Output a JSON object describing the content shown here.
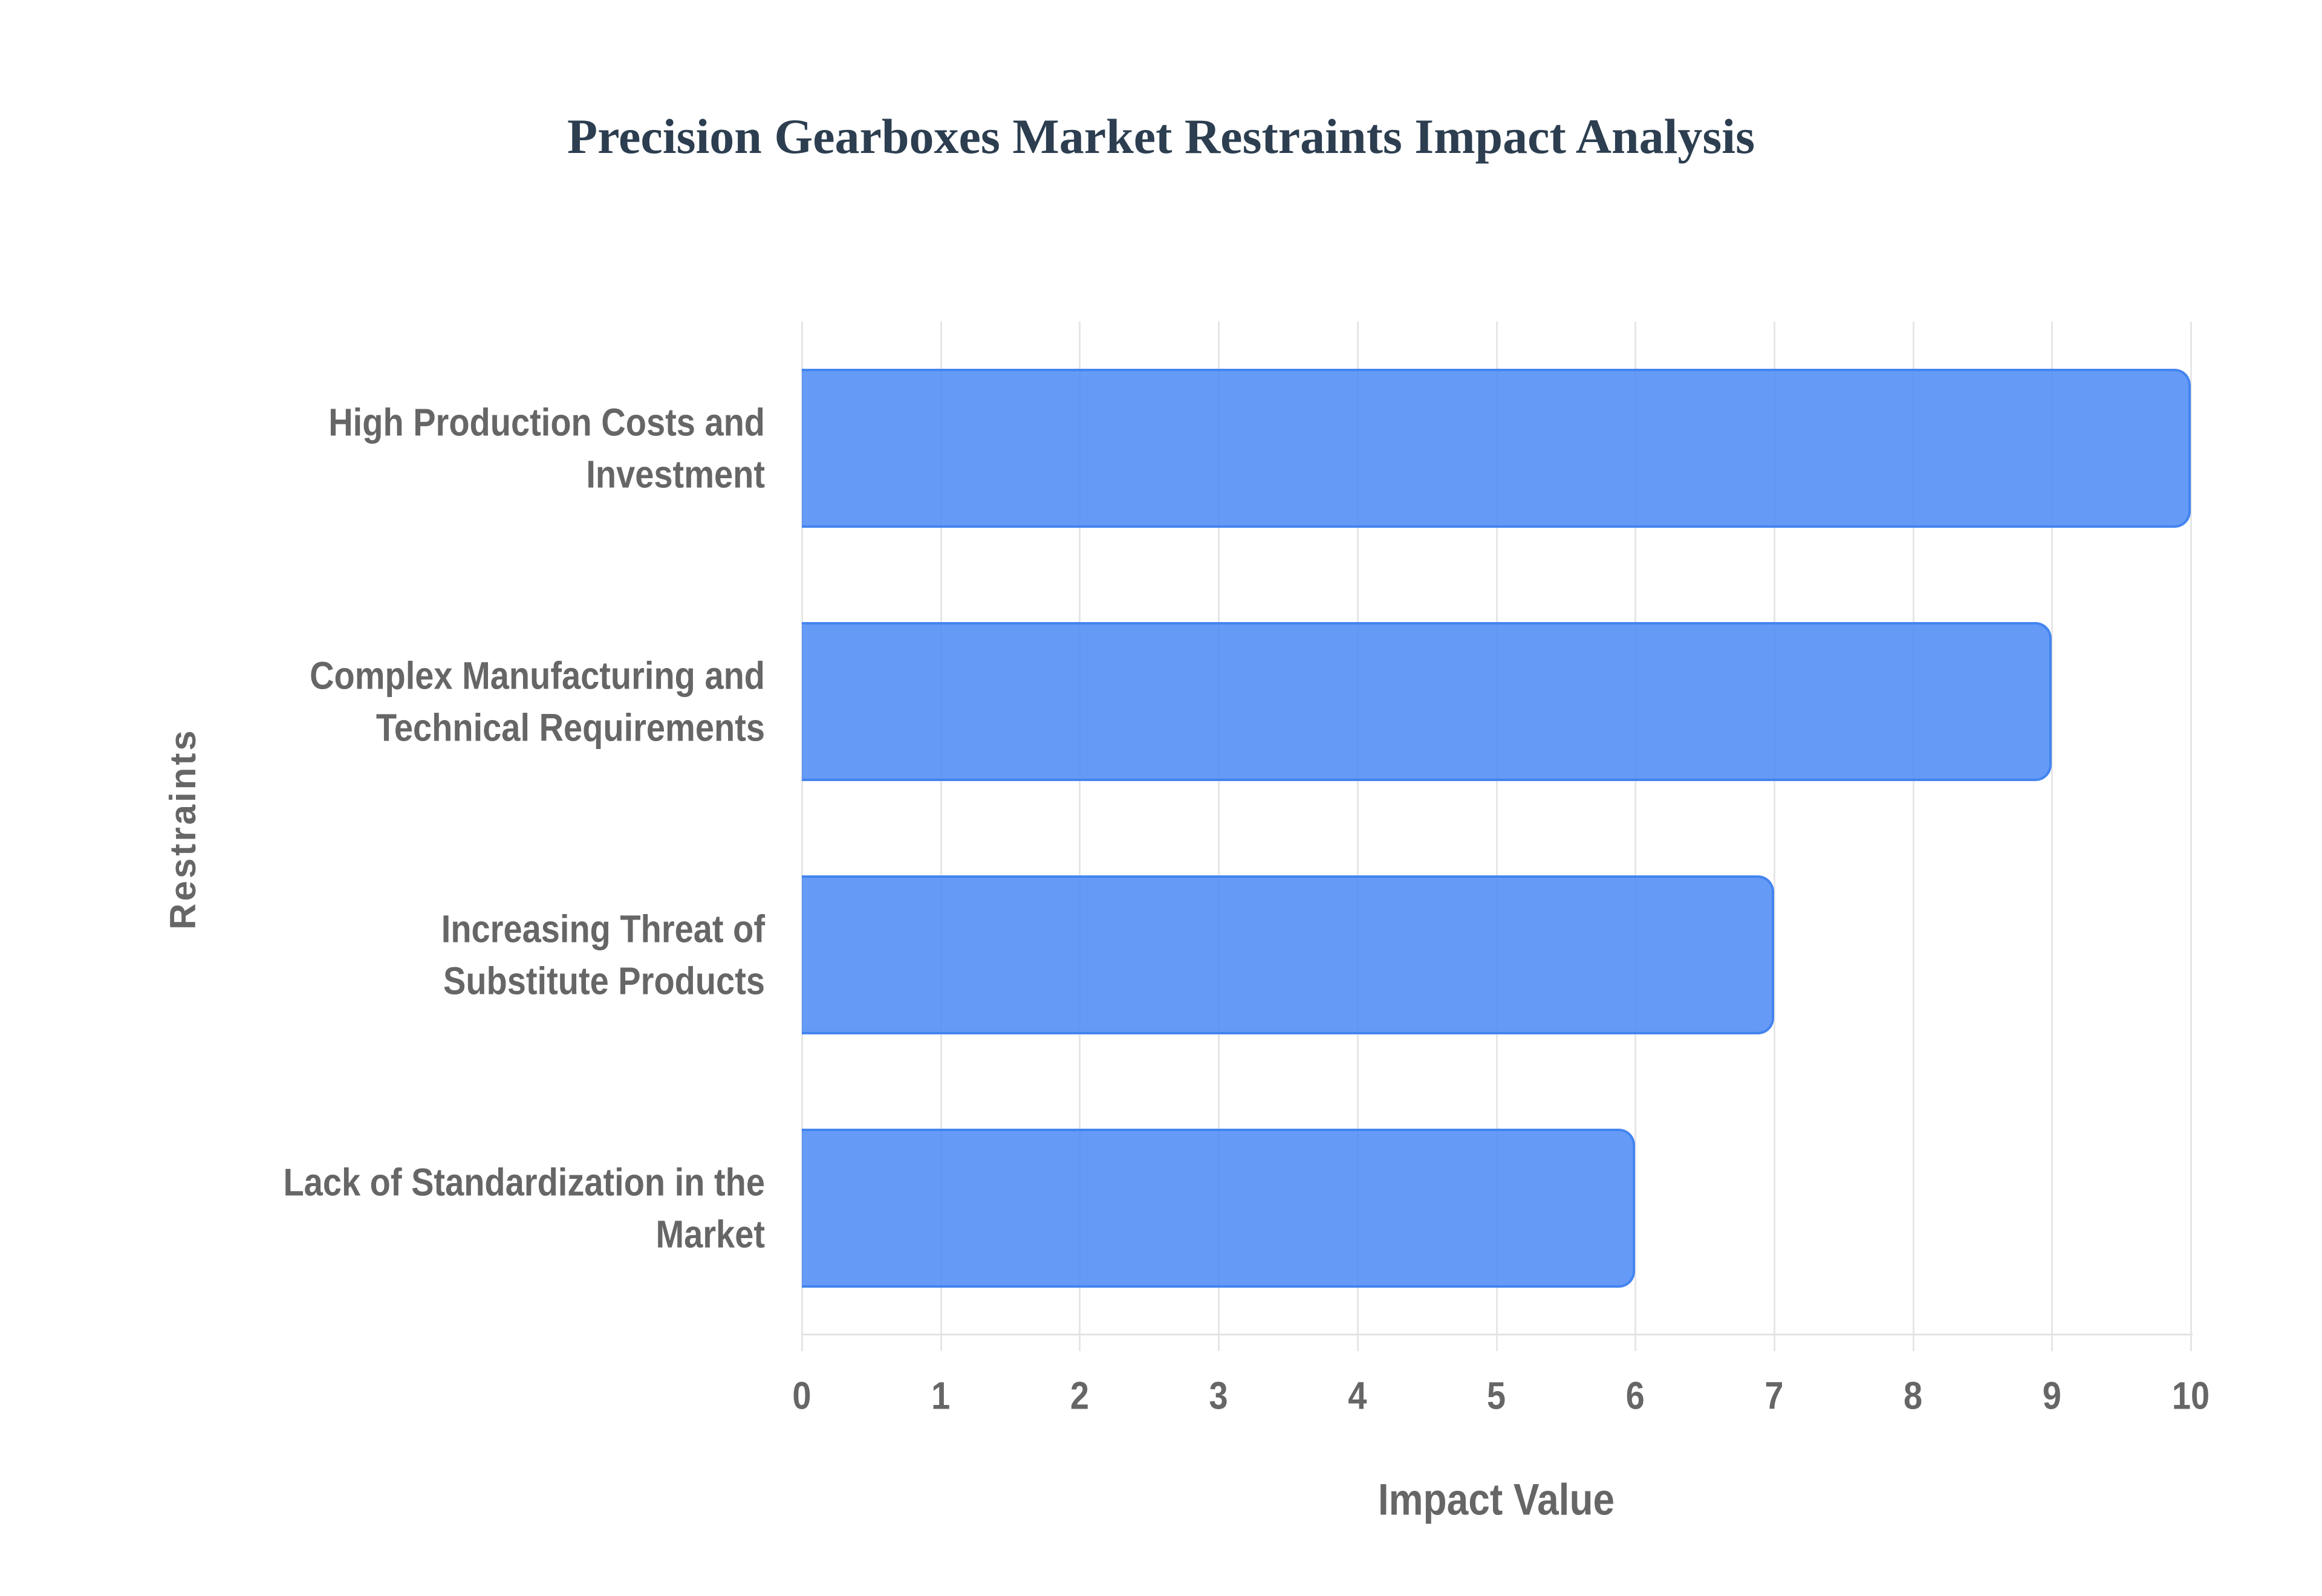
{
  "chart_data": {
    "type": "bar",
    "orientation": "horizontal",
    "title": "Precision Gearboxes Market Restraints Impact Analysis",
    "xlabel": "Impact Value",
    "ylabel": "Restraints",
    "categories": [
      "High Production Costs and Investment",
      "Complex Manufacturing and Technical Requirements",
      "Increasing Threat of Substitute Products",
      "Lack of Standardization in the Market"
    ],
    "category_lines": [
      [
        "High Production Costs and",
        "Investment"
      ],
      [
        "Complex Manufacturing and",
        "Technical Requirements"
      ],
      [
        "Increasing Threat of",
        "Substitute Products"
      ],
      [
        "Lack of Standardization in the",
        "Market"
      ]
    ],
    "values": [
      10,
      9,
      7,
      6
    ],
    "xlim": [
      0,
      10
    ],
    "xticks": [
      "0",
      "1",
      "2",
      "3",
      "4",
      "5",
      "6",
      "7",
      "8",
      "9",
      "10"
    ],
    "grid": true,
    "legend": null,
    "colors": {
      "bar_fill": "#6399f5",
      "bar_border": "#4384f0",
      "title": "#2c3e50",
      "text": "#666666",
      "grid": "#e6e6e6"
    }
  }
}
